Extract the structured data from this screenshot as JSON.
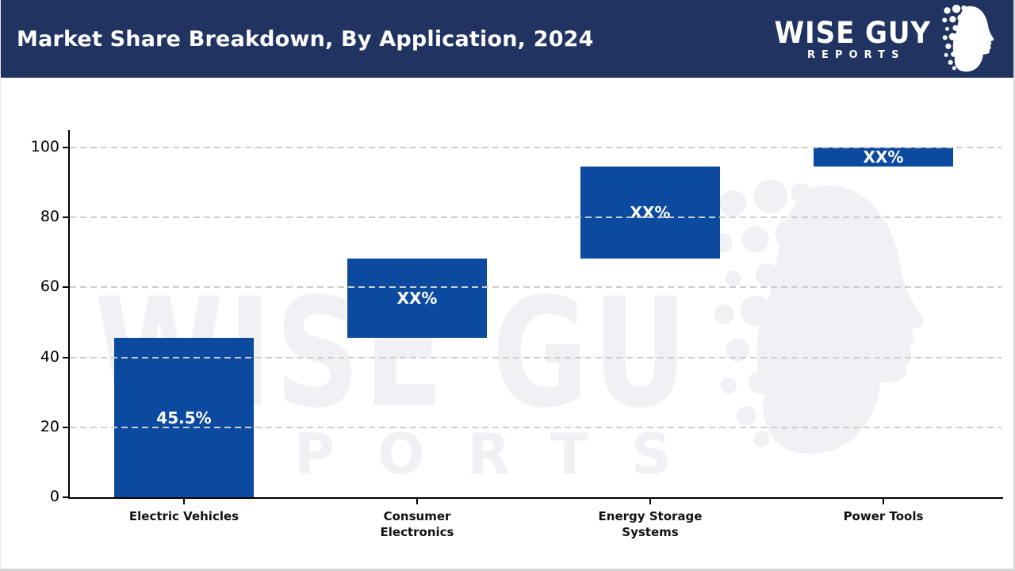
{
  "header": {
    "title": "Market Share Breakdown, By Application, 2024",
    "logo": {
      "name": "WISE GUY",
      "sub": "REPORTS"
    }
  },
  "watermark": {
    "line1": "WISE GU",
    "line2": "REPORTS"
  },
  "chart_data": {
    "type": "bar",
    "subtype": "waterfall",
    "title": "Market Share Breakdown, By Application, 2024",
    "categories": [
      "Electric Vehicles",
      "Consumer Electronics",
      "Energy Storage Systems",
      "Power Tools"
    ],
    "segments": [
      {
        "category": "Electric Vehicles",
        "start": 0,
        "end": 45.5,
        "label": "45.5%"
      },
      {
        "category": "Consumer Electronics",
        "start": 45.5,
        "end": 68.3,
        "label": "XX%"
      },
      {
        "category": "Energy Storage Systems",
        "start": 68.3,
        "end": 94.6,
        "label": "XX%"
      },
      {
        "category": "Power Tools",
        "start": 94.6,
        "end": 100,
        "label": "XX%"
      }
    ],
    "xlabel": "",
    "ylabel": "",
    "yticks": [
      0,
      20,
      40,
      60,
      80,
      100
    ],
    "ylim": [
      0,
      105
    ],
    "grid": "horizontal dashed lines at 20/40/60/80/100, drawn over bars",
    "legend": "none"
  },
  "colors": {
    "header_bg": "#213461",
    "bar": "#0c4aa0",
    "bar_label": "#ffffff",
    "grid": "#cdcdcd",
    "axis": "#000000",
    "watermark": "#f0f1f4",
    "page_bg": "#ffffff"
  }
}
